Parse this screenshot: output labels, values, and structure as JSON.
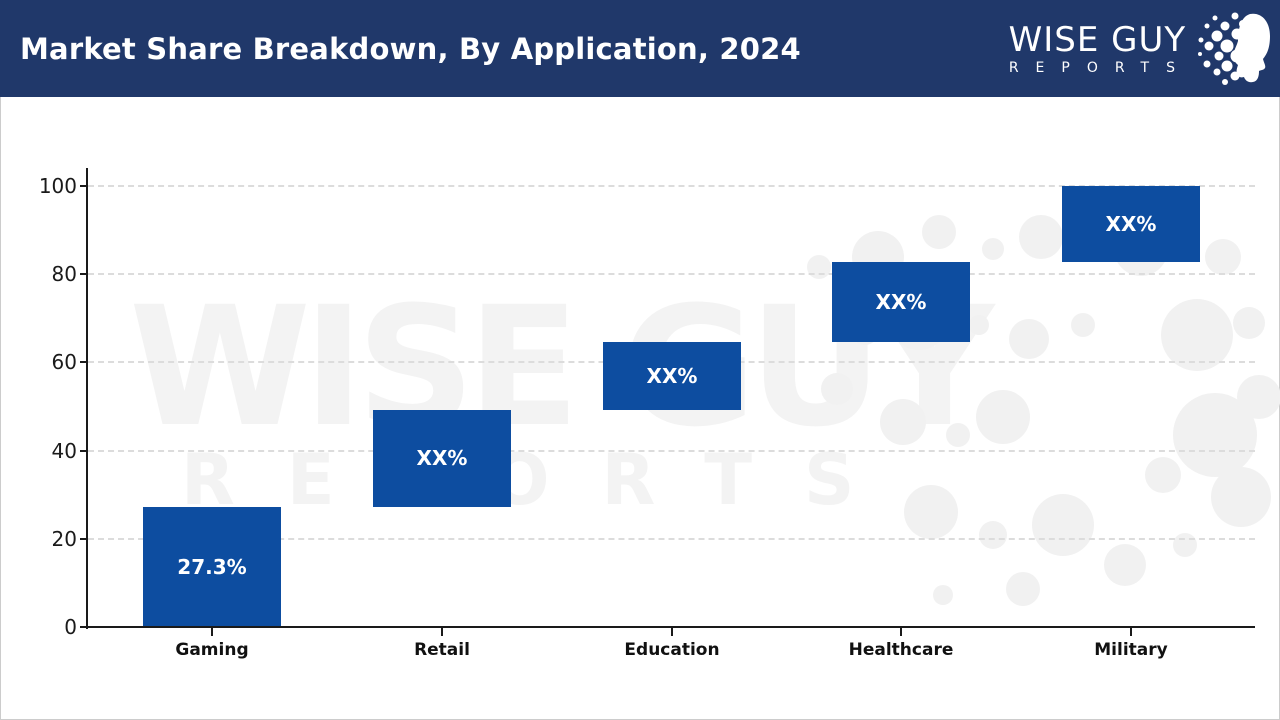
{
  "header": {
    "title": "Market Share Breakdown, By Application, 2024",
    "background_color": "#20386a",
    "logo": {
      "line1": "WISE GUY",
      "line2": "REPORTS"
    }
  },
  "watermark": {
    "line1": "WISE GUY",
    "line2": "REPORTS"
  },
  "chart_data": {
    "type": "bar",
    "subtype": "waterfall",
    "title": "Market Share Breakdown, By Application, 2024",
    "categories": [
      "Gaming",
      "Retail",
      "Education",
      "Healthcare",
      "Military"
    ],
    "segments": [
      {
        "category": "Gaming",
        "start": 0,
        "end": 27.3,
        "value": 27.3,
        "label": "27.3%"
      },
      {
        "category": "Retail",
        "start": 27.3,
        "end": 49.2,
        "value": 21.9,
        "label": "XX%"
      },
      {
        "category": "Education",
        "start": 49.2,
        "end": 64.6,
        "value": 15.4,
        "label": "XX%"
      },
      {
        "category": "Healthcare",
        "start": 64.6,
        "end": 82.8,
        "value": 18.2,
        "label": "XX%"
      },
      {
        "category": "Military",
        "start": 82.8,
        "end": 100,
        "value": 17.2,
        "label": "XX%"
      }
    ],
    "yticks": [
      0,
      20,
      40,
      60,
      80,
      100
    ],
    "ylim": [
      0,
      104
    ],
    "xlabel": "",
    "ylabel": "",
    "legend": "none",
    "grid": "dashed-horizontal",
    "bar_color": "#0d4da0",
    "bar_label_color": "#ffffff",
    "axis_color": "#1a1a1a",
    "gridline_color": "#dcdcdc",
    "watermark_color": "#f3f3f3"
  }
}
